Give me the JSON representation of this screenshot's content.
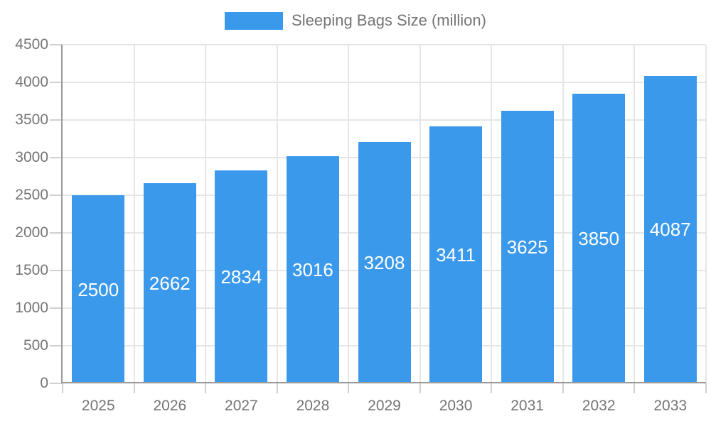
{
  "legend": {
    "items": [
      {
        "label": "Sleeping Bags Size (million)",
        "color": "#3b99ec"
      }
    ]
  },
  "chart_data": {
    "type": "bar",
    "title": "Sleeping Bags Size (million)",
    "categories": [
      "2025",
      "2026",
      "2027",
      "2028",
      "2029",
      "2030",
      "2031",
      "2032",
      "2033"
    ],
    "series": [
      {
        "name": "Sleeping Bags Size (million)",
        "values": [
          2500,
          2662,
          2834,
          3016,
          3208,
          3411,
          3625,
          3850,
          4087
        ]
      }
    ],
    "xlabel": "",
    "ylabel": "",
    "ylim": [
      0,
      4500
    ],
    "ytick_step": 500,
    "yticks": [
      0,
      500,
      1000,
      1500,
      2000,
      2500,
      3000,
      3500,
      4000,
      4500
    ],
    "grid": true,
    "bar_value_labels_shown": true,
    "legend_position": "top-center",
    "colors": {
      "bar": "#3b99ec",
      "bar_label": "#ffffff",
      "axis_text": "#757575",
      "grid_line": "#e6e6e6",
      "tick": "#d0d0d0",
      "axis_line": "#9a9a9a",
      "background": "#ffffff"
    }
  }
}
